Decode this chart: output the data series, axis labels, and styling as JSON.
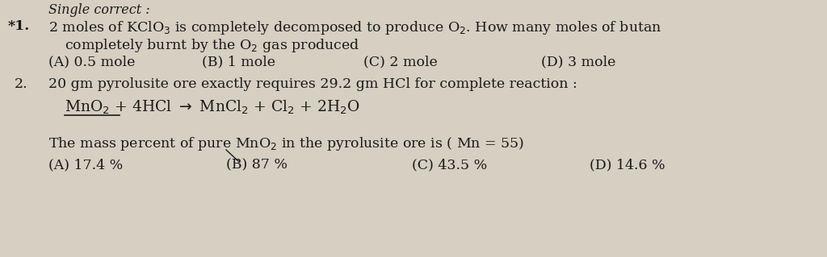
{
  "bg_color": "#d6cfc2",
  "text_color": "#1a1a1a",
  "q1_line1": "2 moles of KClO$_3$ is completely decomposed to produce O$_2$. How many moles of butan",
  "q1_line2": "completely burnt by the O$_2$ gas produced",
  "q1_optA": "(A) 0.5 mole",
  "q1_optB": "(B) 1 mole",
  "q1_optC": "(C) 2 mole",
  "q1_optD": "(D) 3 mole",
  "q2_line1": "20 gm pyrolusite ore exactly requires 29.2 gm HCl for complete reaction :",
  "q2_reaction": "MnO$_2$ + 4HCl $\\rightarrow$ MnCl$_2$ + Cl$_2$ + 2H$_2$O",
  "q2_mass_line": "The mass percent of pure MnO$_2$ in the pyrolusite ore is ( Mn = 55)",
  "q2_optA": "(A) 17.4 %",
  "q2_optB": "(B) 87 %",
  "q2_optC": "(C) 43.5 %",
  "q2_optD": "(D) 14.6 %",
  "font_size": 12.5,
  "fig_width": 10.24,
  "fig_height": 3.19,
  "dpi": 100
}
